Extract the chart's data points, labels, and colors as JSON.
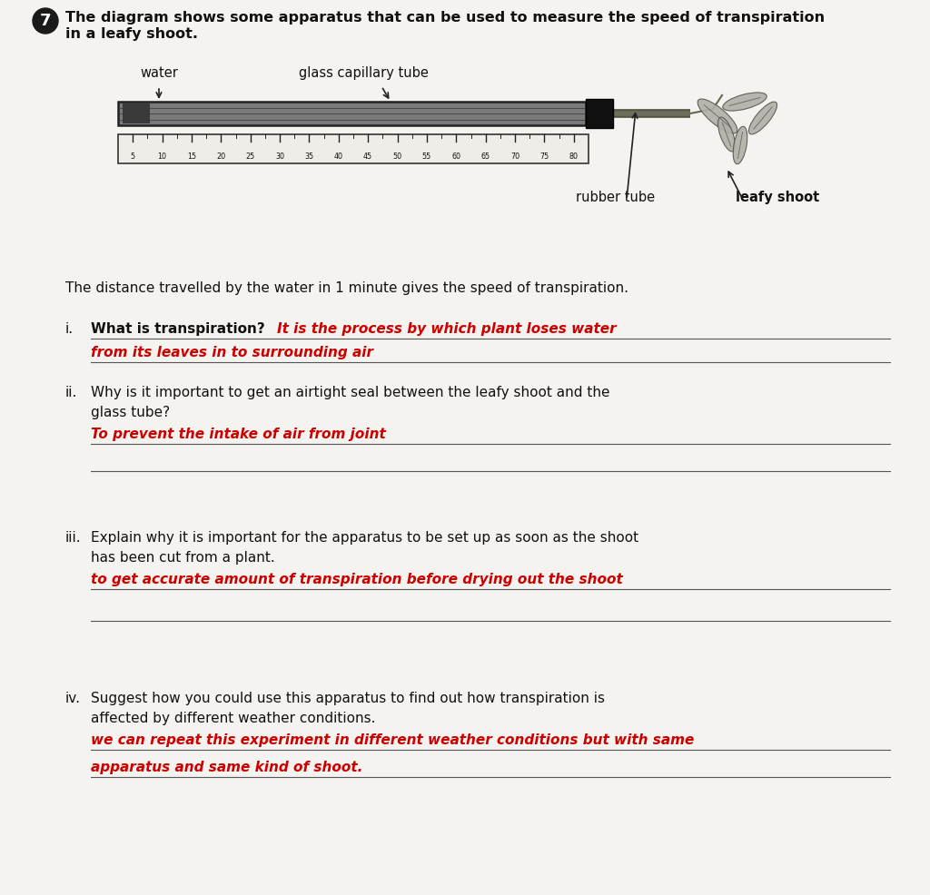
{
  "bg_color": "#f5f3ef",
  "title_number": "7",
  "title_circle_color": "#1a1a1a",
  "title_text_line1": "The diagram shows some apparatus that can be used to measure the speed of transpiration",
  "title_text_line2": "in a leafy shoot.",
  "label_water": "water",
  "label_glass": "glass capillary tube",
  "label_rubber": "rubber tube",
  "label_leafy": "leafy shoot",
  "ruler_ticks": [
    "5",
    "10",
    "15",
    "20",
    "25",
    "30",
    "35",
    "40",
    "45",
    "50",
    "55",
    "60",
    "65",
    "70",
    "75",
    "80"
  ],
  "distance_text": "The distance travelled by the water in 1 minute gives the speed of transpiration.",
  "q1_roman": "i.",
  "q1_question": "What is transpiration?",
  "q1_answer_line1": "It is the process by which plant loses water",
  "q1_answer_line2": "from its leaves in to surrounding air",
  "q2_roman": "ii.",
  "q2_question_line1": "Why is it important to get an airtight seal between the leafy shoot and the",
  "q2_question_line2": "glass tube?",
  "q2_answer": "To prevent the intake of air from joint",
  "q3_roman": "iii.",
  "q3_question_line1": "Explain why it is important for the apparatus to be set up as soon as the shoot",
  "q3_question_line2": "has been cut from a plant.",
  "q3_answer": "to get accurate amount of transpiration before drying out the shoot",
  "q4_roman": "iv.",
  "q4_question_line1": "Suggest how you could use this apparatus to find out how transpiration is",
  "q4_question_line2": "affected by different weather conditions.",
  "q4_answer_line1": "we can repeat this experiment in different weather conditions but with same",
  "q4_answer_line2": "apparatus and same kind of shoot.",
  "answer_color": "#cc0000",
  "text_color": "#111111",
  "line_color": "#444444",
  "font_size_title": 11.5,
  "font_size_body": 11.0,
  "font_size_small": 10.0
}
